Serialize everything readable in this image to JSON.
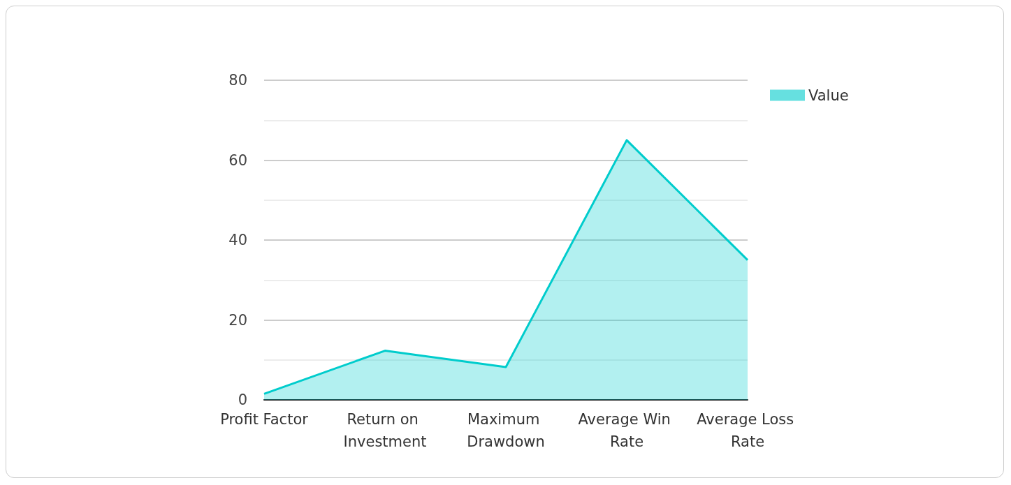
{
  "chart_data": {
    "type": "area",
    "categories": [
      "Profit Factor",
      "Return on Investment",
      "Maximum Drawdown",
      "Average Win Rate",
      "Average Loss Rate"
    ],
    "series": [
      {
        "name": "Value",
        "color": "#00cccc",
        "values": [
          1.5,
          12.3,
          8.2,
          65,
          35
        ]
      }
    ],
    "ylim": [
      0,
      80
    ],
    "yticks": [
      0,
      20,
      40,
      60,
      80
    ],
    "grid": "y",
    "legend": "top right",
    "marker": "none"
  }
}
